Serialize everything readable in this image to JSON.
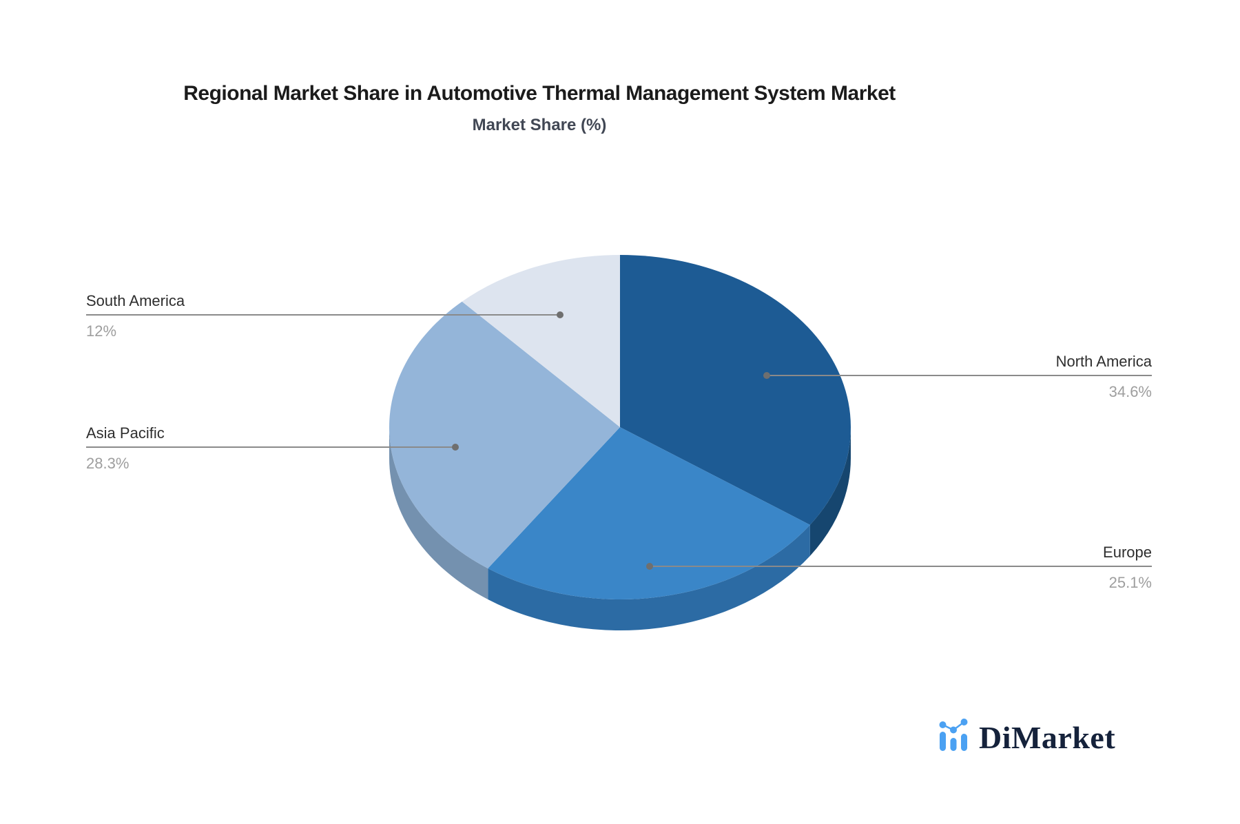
{
  "chart_data": {
    "type": "pie",
    "style": "pie3d",
    "title": "Regional Market Share in Automotive Thermal Management System Market",
    "subtitle": "Market Share (%)",
    "unit": "%",
    "direction": "clockwise",
    "start_angle": "12 o'clock",
    "legend": false,
    "slices": [
      {
        "label": "North America",
        "value": 34.6,
        "display": "34.6%",
        "color": "#1D5B94",
        "side_color": "#16466F",
        "label_side": "right"
      },
      {
        "label": "Europe",
        "value": 25.1,
        "display": "25.1%",
        "color": "#3A86C8",
        "side_color": "#2C6BA4",
        "label_side": "right"
      },
      {
        "label": "Asia Pacific",
        "value": 28.3,
        "display": "28.3%",
        "color": "#94B5D9",
        "side_color": "#7491AF",
        "label_side": "left"
      },
      {
        "label": "South America",
        "value": 12,
        "display": "12%",
        "color": "#DDE4EF",
        "side_color": "#B7C2D4",
        "label_side": "left"
      }
    ],
    "leader_line_color": "#8a8a8a",
    "leader_dot_color": "#6f6f6f",
    "label_color": "#2e2e2e",
    "value_color": "#9e9e9e"
  },
  "branding": {
    "name": "DiMarket",
    "icon": "mini-bar-line-chart-icon",
    "icon_color": "#4BA1F2",
    "text_color": "#15223B"
  }
}
